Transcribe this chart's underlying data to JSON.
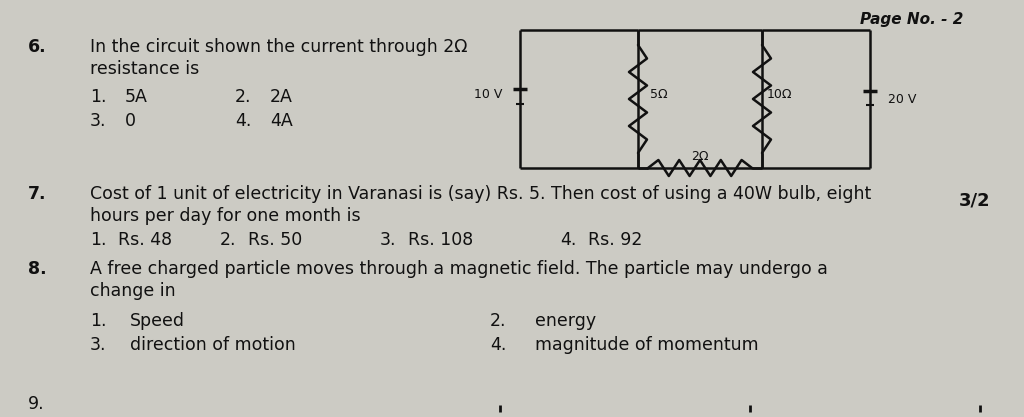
{
  "background_color": "#cccbc4",
  "page_no": "Page No. - 2",
  "right_mark": "3/2",
  "q6_num": "6.",
  "q6_text1": "In the circuit shown the current through 2Ω",
  "q6_text2": "resistance is",
  "q7_num": "7.",
  "q7_text1": "Cost of 1 unit of electricity in Varanasi is (say) Rs. 5. Then cost of using a 40W bulb, eight",
  "q7_text2": "hours per day for one month is",
  "q8_num": "8.",
  "q8_text1": "A free charged particle moves through a magnetic field. The particle may undergo a",
  "q8_text2": "change in",
  "q9_num": "9.",
  "text_color": "#111111",
  "font_size": 12.5
}
